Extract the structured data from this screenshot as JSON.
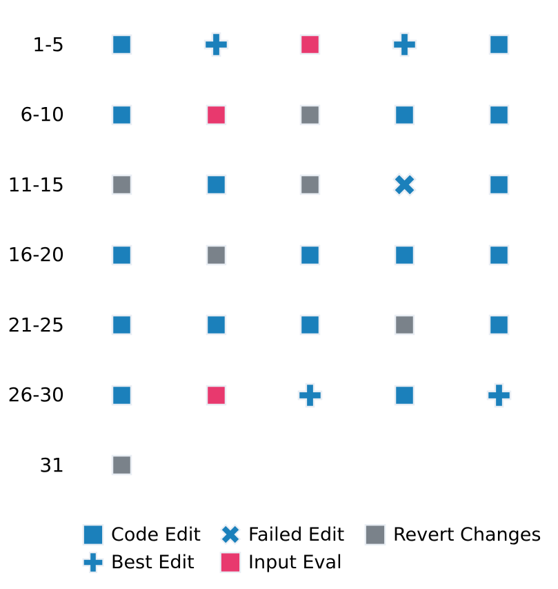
{
  "chart_data": {
    "type": "scatter",
    "title": "",
    "xlabel": "",
    "ylabel": "",
    "grid": false,
    "legend_position": "lower center",
    "items_per_row": 5,
    "row_tick_labels": [
      "1-5",
      "6-10",
      "11-15",
      "16-20",
      "21-25",
      "26-30",
      "31"
    ],
    "rows": [
      {
        "label": "1-5",
        "markers": [
          "code_edit",
          "best_edit",
          "input_eval",
          "best_edit",
          "code_edit"
        ]
      },
      {
        "label": "6-10",
        "markers": [
          "code_edit",
          "input_eval",
          "revert_changes",
          "code_edit",
          "code_edit"
        ]
      },
      {
        "label": "11-15",
        "markers": [
          "revert_changes",
          "code_edit",
          "revert_changes",
          "failed_edit",
          "code_edit"
        ]
      },
      {
        "label": "16-20",
        "markers": [
          "code_edit",
          "revert_changes",
          "code_edit",
          "code_edit",
          "code_edit"
        ]
      },
      {
        "label": "21-25",
        "markers": [
          "code_edit",
          "code_edit",
          "code_edit",
          "revert_changes",
          "code_edit"
        ]
      },
      {
        "label": "26-30",
        "markers": [
          "code_edit",
          "input_eval",
          "best_edit",
          "code_edit",
          "best_edit"
        ]
      },
      {
        "label": "31",
        "markers": [
          "revert_changes"
        ]
      }
    ],
    "legend": [
      {
        "key": "code_edit",
        "label": "Code Edit",
        "shape": "square",
        "color": "#1b80bb"
      },
      {
        "key": "failed_edit",
        "label": "Failed Edit",
        "shape": "x",
        "color": "#1b80bb"
      },
      {
        "key": "revert_changes",
        "label": "Revert Changes",
        "shape": "square",
        "color": "#7a828a"
      },
      {
        "key": "best_edit",
        "label": "Best Edit",
        "shape": "plus",
        "color": "#1b80bb"
      },
      {
        "key": "input_eval",
        "label": "Input Eval",
        "shape": "square",
        "color": "#e8396e"
      }
    ],
    "colors": {
      "blue": "#1b80bb",
      "pink": "#e8396e",
      "gray": "#7a828a",
      "marker_halo": "#e9eef4",
      "text": "#000000",
      "background": "#ffffff"
    }
  }
}
